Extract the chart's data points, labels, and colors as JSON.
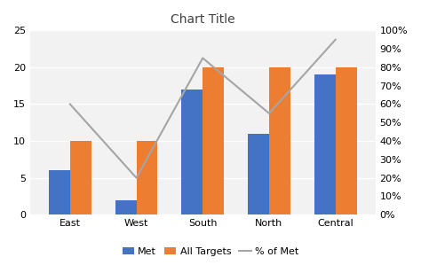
{
  "categories": [
    "East",
    "West",
    "South",
    "North",
    "Central"
  ],
  "met": [
    6,
    2,
    17,
    11,
    19
  ],
  "all_targets": [
    10,
    10,
    20,
    20,
    20
  ],
  "pct_of_met": [
    0.6,
    0.2,
    0.85,
    0.55,
    0.95
  ],
  "bar_color_met": "#4472C4",
  "bar_color_targets": "#ED7D31",
  "line_color": "#A5A5A5",
  "title": "Chart Title",
  "ylim_left": [
    0,
    25
  ],
  "ylim_right": [
    0,
    1.0
  ],
  "yticks_left": [
    0,
    5,
    10,
    15,
    20,
    25
  ],
  "yticks_right": [
    0.0,
    0.1,
    0.2,
    0.3,
    0.4,
    0.5,
    0.6,
    0.7,
    0.8,
    0.9,
    1.0
  ],
  "legend_labels": [
    "Met",
    "All Targets",
    "% of Met"
  ],
  "background_color": "#ffffff",
  "plot_bg_color": "#f2f2f2",
  "grid_color": "#ffffff",
  "title_fontsize": 10,
  "tick_fontsize": 8,
  "legend_fontsize": 8,
  "bar_width": 0.32
}
